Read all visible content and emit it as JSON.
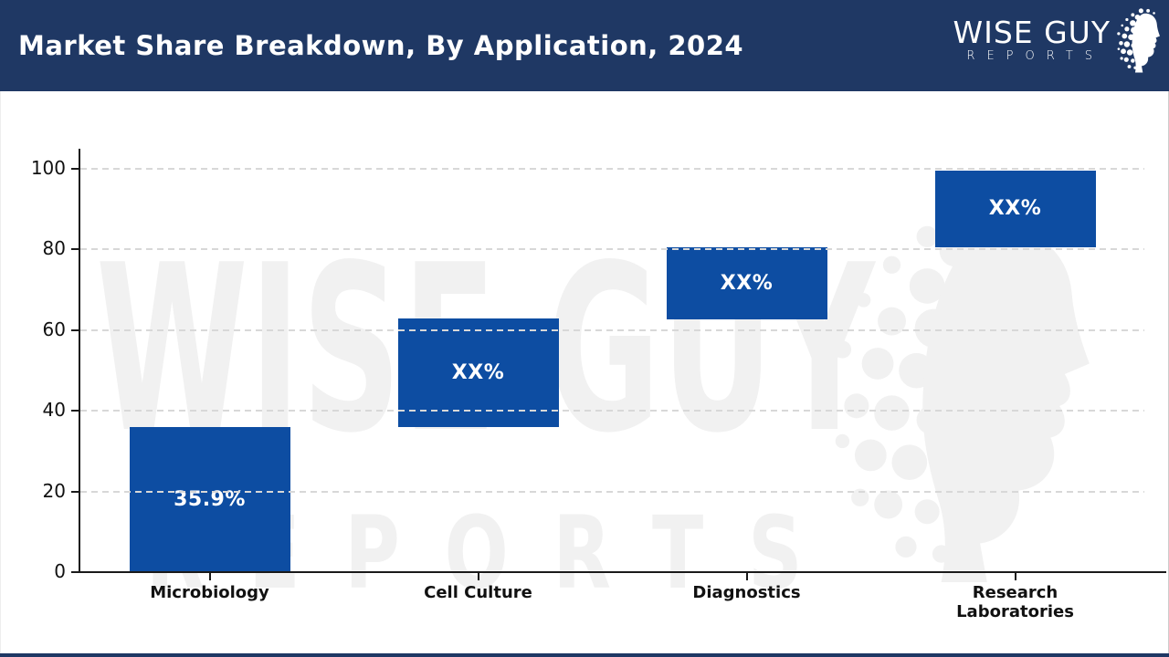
{
  "header": {
    "title": "Market Share Breakdown, By Application, 2024",
    "logo": {
      "line1": "WISE GUY",
      "line2": "REPORTS"
    }
  },
  "watermark": {
    "line1": "WISE GUY",
    "line2": "REPORTS"
  },
  "colors": {
    "header_bg": "#1f3864",
    "bar": "#0d4da2",
    "gridline": "#d8d8d8",
    "watermark": "#f1f1f1",
    "axis": "#1a1a1a",
    "bar_label": "#ffffff"
  },
  "chart_data": {
    "type": "bar",
    "subtype": "floating-waterfall",
    "title": "Market Share Breakdown, By Application, 2024",
    "categories": [
      "Microbiology",
      "Cell Culture",
      "Diagnostics",
      "Research\nLaboratories"
    ],
    "segments": [
      {
        "category": "Microbiology",
        "start": 0,
        "end": 35.9,
        "label": "35.9%"
      },
      {
        "category": "Cell Culture",
        "start": 35.9,
        "end": 62.9,
        "label": "XX%"
      },
      {
        "category": "Diagnostics",
        "start": 62.7,
        "end": 80.5,
        "label": "XX%"
      },
      {
        "category": "Research Laboratories",
        "start": 80.6,
        "end": 99.6,
        "label": "XX%"
      }
    ],
    "xlabel": "",
    "ylabel": "",
    "ylim": [
      0,
      100
    ],
    "yticks": [
      0,
      20,
      40,
      60,
      80,
      100
    ],
    "grid": "horizontal-dashed-over-bars",
    "legend": "none"
  }
}
